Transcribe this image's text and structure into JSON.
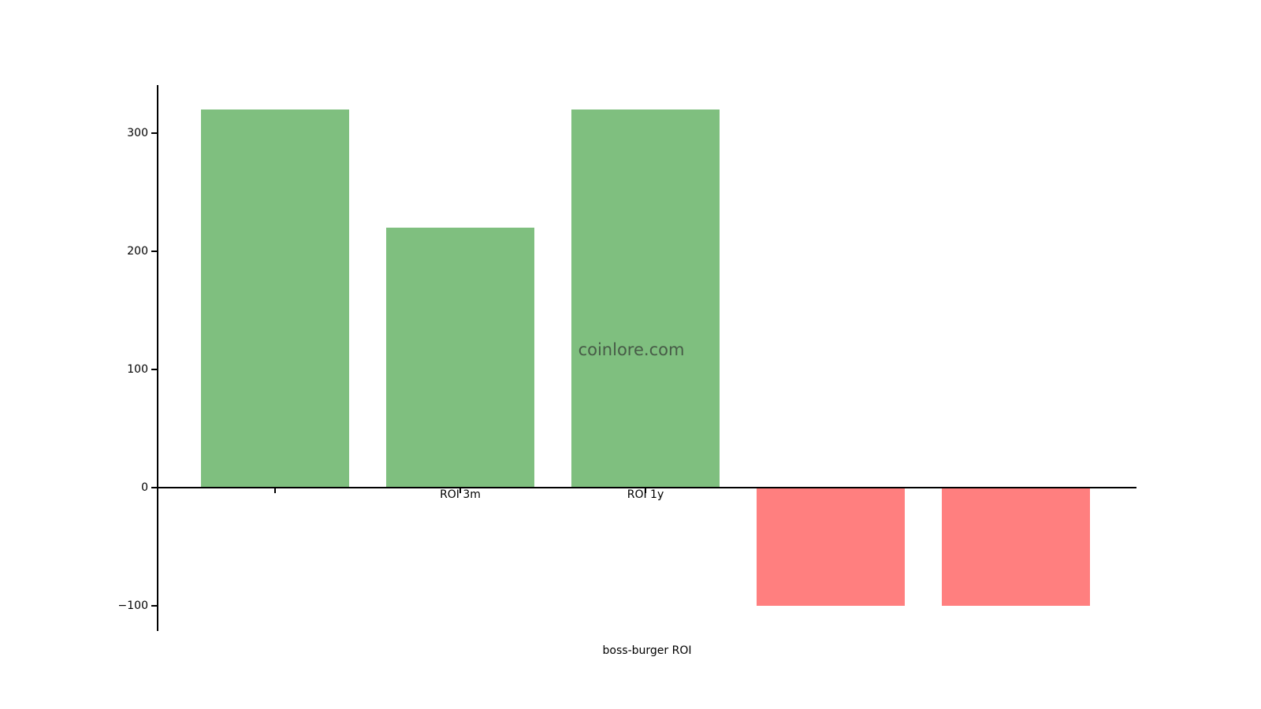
{
  "chart_data": {
    "type": "bar",
    "title": "boss-burger ROI",
    "watermark": "coinlore.com",
    "categories": [
      "",
      "ROI 3m",
      "ROI 1y",
      "",
      ""
    ],
    "values": [
      320,
      220,
      320,
      -100,
      -100
    ],
    "bar_colors": [
      "#7fbf7f",
      "#7fbf7f",
      "#7fbf7f",
      "#ff7f7f",
      "#ff7f7f"
    ],
    "positive_color": "#7fbf7f",
    "negative_color": "#ff7f7f",
    "yticks": [
      300,
      200,
      100,
      0,
      -100
    ],
    "ytick_labels": [
      "300",
      "200",
      "100",
      "0",
      "−100"
    ],
    "xtick_indices": [
      0,
      1,
      2
    ],
    "ylim": [
      -121,
      341
    ],
    "grid": false,
    "legend_position": "none",
    "background_color": "#ffffff"
  }
}
